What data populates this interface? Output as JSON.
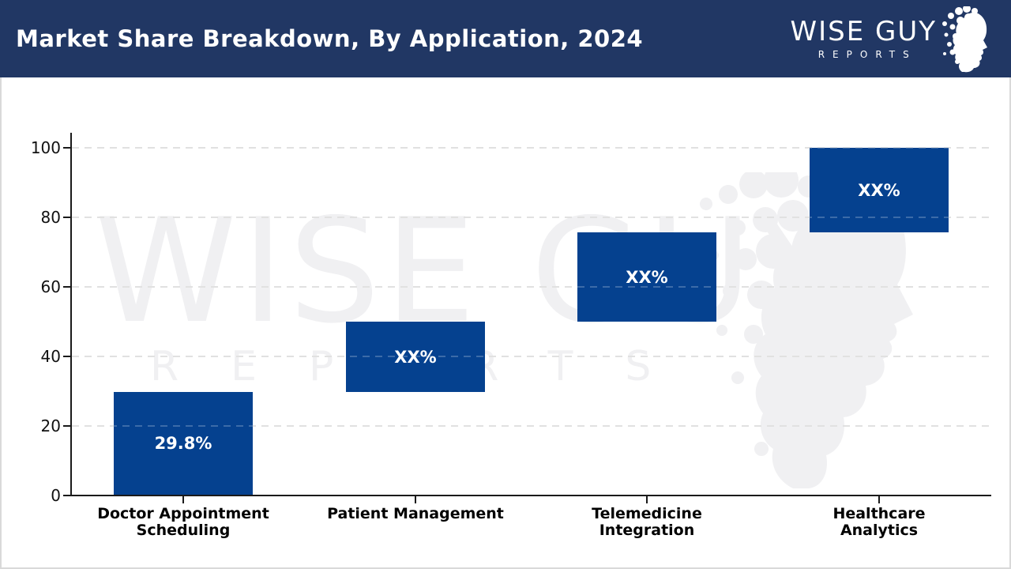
{
  "header": {
    "title": "Market Share Breakdown, By Application, 2024",
    "logo": {
      "wordmark": "WISE GUY",
      "reports": "REPORTS"
    }
  },
  "watermark": {
    "wordmark": "WISE GUY",
    "reports": "REPORTS"
  },
  "colors": {
    "header_bg": "#213764",
    "bar": "#05418f",
    "watermark": "#f0f0f2",
    "gridline": "#d9d9d9",
    "axis": "#1a1a1a",
    "page_border": "#d9d9d9",
    "bar_label": "#ffffff",
    "title_text": "#ffffff"
  },
  "chart_data": {
    "type": "bar",
    "subtype": "waterfall",
    "title": "Market Share Breakdown, By Application, 2024",
    "categories": [
      "Doctor Appointment Scheduling",
      "Patient Management",
      "Telemedicine Integration",
      "Healthcare Analytics"
    ],
    "category_lines": [
      [
        "Doctor Appointment",
        "Scheduling"
      ],
      [
        "Patient Management"
      ],
      [
        "Telemedicine",
        "Integration"
      ],
      [
        "Healthcare",
        "Analytics"
      ]
    ],
    "segments": [
      {
        "category": "Doctor Appointment Scheduling",
        "start": 0,
        "end": 29.8,
        "label": "29.8%"
      },
      {
        "category": "Patient Management",
        "start": 29.8,
        "end": 49.9,
        "label": "XX%"
      },
      {
        "category": "Telemedicine Integration",
        "start": 49.9,
        "end": 75.6,
        "label": "XX%"
      },
      {
        "category": "Healthcare Analytics",
        "start": 75.6,
        "end": 100,
        "label": "XX%"
      }
    ],
    "xlabel": "",
    "ylabel": "",
    "yticks": [
      0,
      20,
      40,
      60,
      80,
      100
    ],
    "ylim": [
      0,
      105
    ],
    "grid": "horizontal-dashed",
    "legend": "none"
  }
}
